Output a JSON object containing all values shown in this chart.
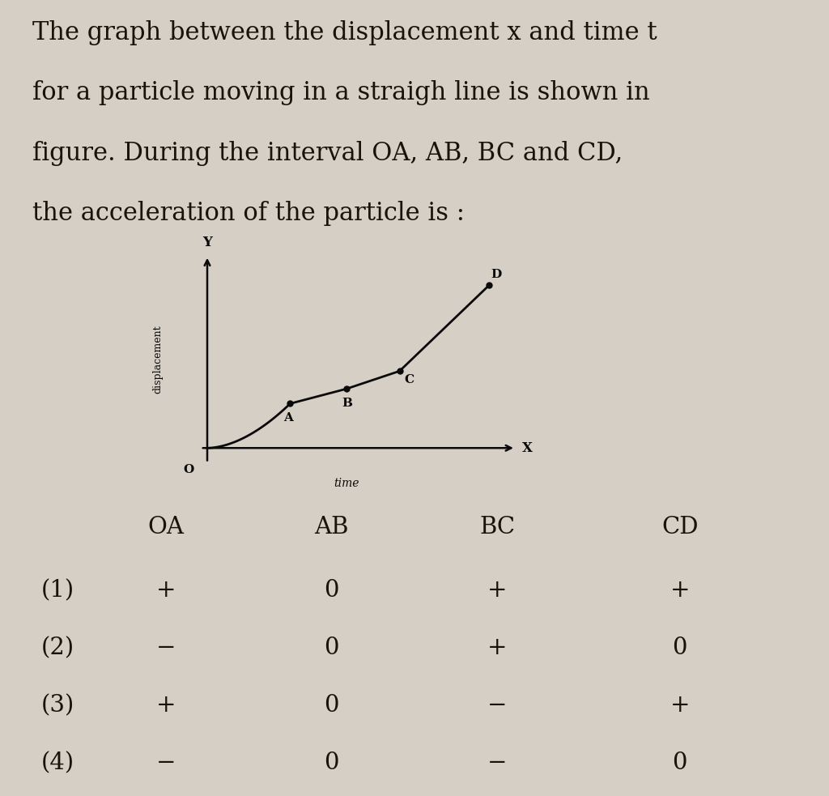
{
  "title_lines": [
    "The graph between the displacement x and time t",
    "for a particle moving in a straigh line is shown in",
    "figure. During the interval OA, AB, BC and CD,",
    "the acceleration of the particle is :"
  ],
  "page_background": "#d6cfc6",
  "graph_bg": "#c4bdb5",
  "graph": {
    "O": [
      0,
      0
    ],
    "A": [
      2.5,
      1.5
    ],
    "B": [
      4.2,
      2.0
    ],
    "C": [
      5.8,
      2.6
    ],
    "D": [
      8.5,
      5.5
    ],
    "xlabel": "X",
    "ylabel": "Y",
    "xlabel_label": "time",
    "ylabel_label": "displacement"
  },
  "table": {
    "headers": [
      "OA",
      "AB",
      "BC",
      "CD"
    ],
    "rows": [
      [
        "(1)",
        "+",
        "0",
        "+",
        "+"
      ],
      [
        "(2)",
        "−",
        "0",
        "+",
        "0"
      ],
      [
        "(3)",
        "+",
        "0",
        "−",
        "+"
      ],
      [
        "(4)",
        "−",
        "0",
        "−",
        "0"
      ]
    ]
  },
  "font_color": "#1a1408",
  "graph_line_color": "#0a0a0a",
  "dot_color": "#0a0a0a"
}
